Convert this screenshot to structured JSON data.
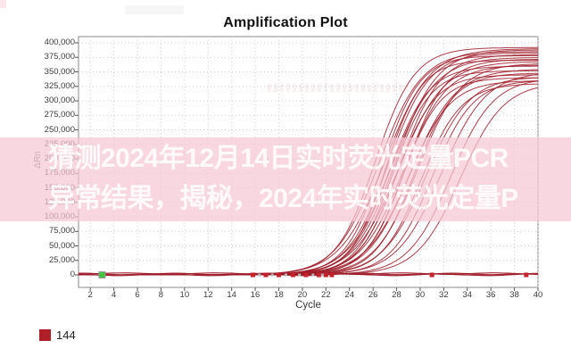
{
  "title": "Amplification Plot",
  "overlay": {
    "line1": "猜测2024年12月14日实时荧光定量PCR",
    "line2": "异常结果，揭秘，2024年实时荧光定量P",
    "band_color": "rgba(247,200,212,0.72)",
    "text_color": "rgba(255,255,255,0.85)"
  },
  "legend": {
    "label": "144",
    "color": "#b01e28"
  },
  "chart_data": {
    "type": "line",
    "title": "Amplification Plot",
    "xlabel": "Cycle",
    "ylabel": "ΔRn",
    "xlim": [
      1,
      40
    ],
    "ylim": [
      0,
      400000
    ],
    "grid": "dotted",
    "legend_position": "bottom-left",
    "curve_color": "#9e1b28",
    "border_color": "#8a8a8a",
    "grid_color": "#cdcdcd",
    "x_ticks": [
      2,
      4,
      6,
      8,
      10,
      12,
      14,
      16,
      18,
      20,
      22,
      24,
      26,
      28,
      30,
      32,
      34,
      36,
      38,
      40
    ],
    "y_tick_values": [
      0,
      25000,
      50000,
      75000,
      100000,
      125000,
      150000,
      175000,
      200000,
      225000,
      250000,
      275000,
      300000,
      325000,
      350000,
      375000,
      400000
    ],
    "y_tick_labels": [
      "0",
      "25,000",
      "50,000",
      "75,000",
      "100,000",
      "125,000",
      "150,000",
      "175,000",
      "200,000",
      "225,000",
      "250,000",
      "275,000",
      "300,000",
      "325,000",
      "350,000",
      "375,000",
      "400,000"
    ],
    "curves": [
      {
        "ct": 26.2,
        "top": 392000,
        "k": 0.5
      },
      {
        "ct": 26.5,
        "top": 385000,
        "k": 0.46
      },
      {
        "ct": 26.8,
        "top": 378000,
        "k": 0.52
      },
      {
        "ct": 27.0,
        "top": 390000,
        "k": 0.44
      },
      {
        "ct": 27.1,
        "top": 370000,
        "k": 0.55
      },
      {
        "ct": 27.3,
        "top": 383000,
        "k": 0.48
      },
      {
        "ct": 27.4,
        "top": 360000,
        "k": 0.5
      },
      {
        "ct": 27.6,
        "top": 375000,
        "k": 0.45
      },
      {
        "ct": 27.7,
        "top": 352000,
        "k": 0.53
      },
      {
        "ct": 27.9,
        "top": 388000,
        "k": 0.47
      },
      {
        "ct": 28.0,
        "top": 345000,
        "k": 0.51
      },
      {
        "ct": 28.2,
        "top": 368000,
        "k": 0.44
      },
      {
        "ct": 28.3,
        "top": 380000,
        "k": 0.49
      },
      {
        "ct": 28.5,
        "top": 340000,
        "k": 0.52
      },
      {
        "ct": 28.6,
        "top": 362000,
        "k": 0.46
      },
      {
        "ct": 28.8,
        "top": 372000,
        "k": 0.5
      },
      {
        "ct": 29.0,
        "top": 335000,
        "k": 0.47
      },
      {
        "ct": 29.2,
        "top": 355000,
        "k": 0.44
      },
      {
        "ct": 29.5,
        "top": 348000,
        "k": 0.5
      },
      {
        "ct": 29.8,
        "top": 365000,
        "k": 0.46
      },
      {
        "ct": 30.1,
        "top": 330000,
        "k": 0.49
      },
      {
        "ct": 30.5,
        "top": 342000,
        "k": 0.45
      },
      {
        "ct": 31.0,
        "top": 336000,
        "k": 0.48
      },
      {
        "ct": 31.8,
        "top": 350000,
        "k": 0.44
      },
      {
        "ct": 32.6,
        "top": 340000,
        "k": 0.46
      },
      {
        "ct": 33.4,
        "top": 332000,
        "k": 0.45
      }
    ],
    "flat_lines": [
      {
        "level": 1500,
        "amp": 1400,
        "phase": 0.5
      },
      {
        "level": 700,
        "amp": 1000,
        "phase": 2.1
      },
      {
        "level": 2300,
        "amp": 1200,
        "phase": 4.0
      },
      {
        "level": 300,
        "amp": 1600,
        "phase": 1.2
      }
    ],
    "baseline_markers": [
      {
        "cycle": 3.0,
        "color": "#3ec43e",
        "size": 7
      },
      {
        "cycle": 15.8,
        "color": "#c6202a",
        "size": 5
      },
      {
        "cycle": 16.9,
        "color": "#c6202a",
        "size": 5
      },
      {
        "cycle": 18.0,
        "color": "#c6202a",
        "size": 5
      },
      {
        "cycle": 19.2,
        "color": "#c6202a",
        "size": 5
      },
      {
        "cycle": 20.3,
        "color": "#c6202a",
        "size": 5
      },
      {
        "cycle": 21.4,
        "color": "#c6202a",
        "size": 5
      },
      {
        "cycle": 22.0,
        "color": "#c6202a",
        "size": 5
      },
      {
        "cycle": 22.5,
        "color": "#c6202a",
        "size": 5
      },
      {
        "cycle": 31.0,
        "color": "#c6202a",
        "size": 5
      },
      {
        "cycle": 39.0,
        "color": "#c6202a",
        "size": 5
      },
      {
        "cycle": 16.35,
        "color": "#b5b5b5",
        "size": 3
      },
      {
        "cycle": 17.45,
        "color": "#b5b5b5",
        "size": 3
      },
      {
        "cycle": 18.6,
        "color": "#b5b5b5",
        "size": 3
      },
      {
        "cycle": 19.75,
        "color": "#b5b5b5",
        "size": 3
      },
      {
        "cycle": 20.9,
        "color": "#b5b5b5",
        "size": 3
      },
      {
        "cycle": 21.7,
        "color": "#b5b5b5",
        "size": 3
      }
    ]
  }
}
